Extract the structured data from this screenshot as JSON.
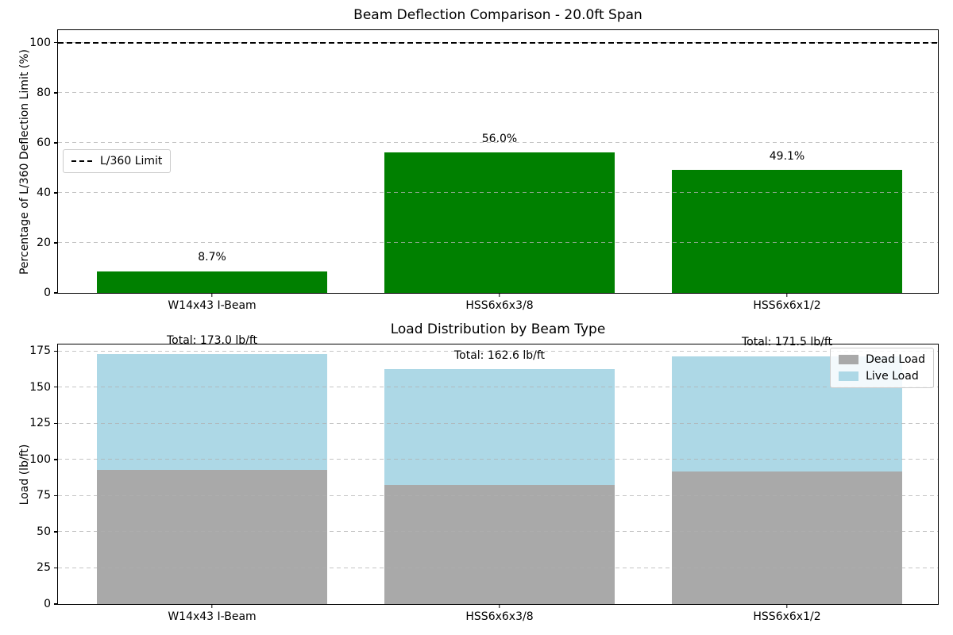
{
  "figure": {
    "background": "#ffffff"
  },
  "chart_data": [
    {
      "type": "bar",
      "title": "Beam Deflection Comparison - 20.0ft Span",
      "ylabel": "Percentage of L/360 Deflection Limit (%)",
      "xlabel": "",
      "categories": [
        "W14x43 I-Beam",
        "HSS6x6x3/8",
        "HSS6x6x1/2"
      ],
      "values": [
        8.7,
        56.0,
        49.1
      ],
      "bar_labels": [
        "8.7%",
        "56.0%",
        "49.1%"
      ],
      "bar_color": "#008000",
      "ylim": [
        0,
        105
      ],
      "yticks": [
        0,
        20,
        40,
        60,
        80,
        100
      ],
      "grid": true,
      "reference_line": {
        "value": 100,
        "label": "L/360 Limit",
        "color": "#000000",
        "style": "dashed"
      },
      "legend": {
        "position": "center-left",
        "entries": [
          {
            "label": "L/360 Limit",
            "marker": "dashed-line",
            "color": "#000000"
          }
        ]
      }
    },
    {
      "type": "stacked-bar",
      "title": "Load Distribution by Beam Type",
      "ylabel": "Load (lb/ft)",
      "xlabel": "",
      "categories": [
        "W14x43 I-Beam",
        "HSS6x6x3/8",
        "HSS6x6x1/2"
      ],
      "series": [
        {
          "name": "Dead Load",
          "color": "#A9A9A9",
          "values": [
            93.0,
            82.6,
            91.5
          ]
        },
        {
          "name": "Live Load",
          "color": "#ADD8E6",
          "values": [
            80.0,
            80.0,
            80.0
          ]
        }
      ],
      "stack_totals": [
        173.0,
        162.6,
        171.5
      ],
      "total_labels": [
        "Total: 173.0 lb/ft",
        "Total: 162.6 lb/ft",
        "Total: 171.5 lb/ft"
      ],
      "ylim": [
        0,
        179.5
      ],
      "yticks": [
        0,
        25,
        50,
        75,
        100,
        125,
        150,
        175
      ],
      "grid": true,
      "legend": {
        "position": "upper-right",
        "entries": [
          {
            "label": "Dead Load",
            "marker": "patch",
            "color": "#A9A9A9"
          },
          {
            "label": "Live Load",
            "marker": "patch",
            "color": "#ADD8E6"
          }
        ]
      }
    }
  ]
}
